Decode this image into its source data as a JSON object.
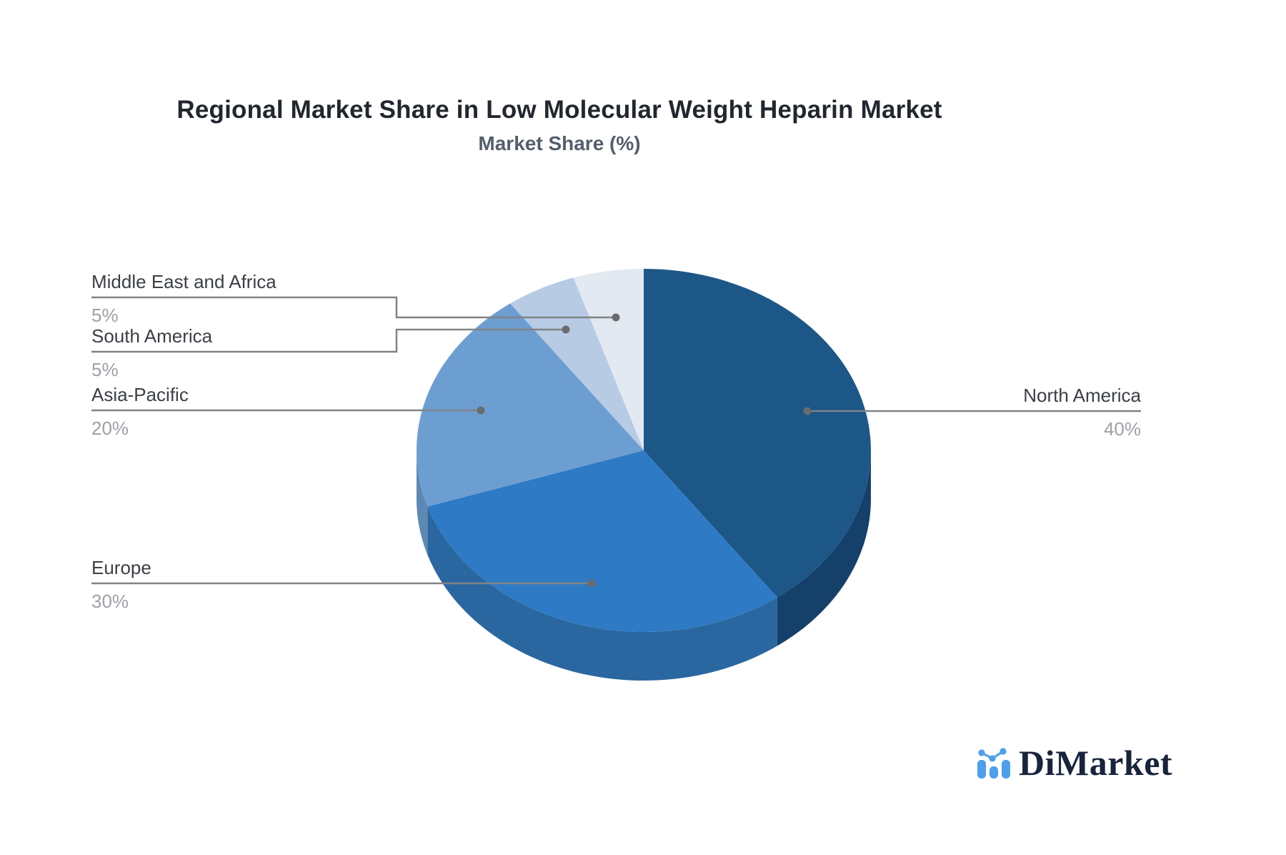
{
  "header": {
    "title": "Regional Market Share in Low Molecular Weight Heparin Market",
    "subtitle": "Market Share (%)"
  },
  "logo": {
    "text": "DiMarket",
    "icon_color": "#4d9fec",
    "text_color": "#18243c"
  },
  "chart_data": {
    "type": "pie",
    "style": "3d",
    "title": "Regional Market Share in Low Molecular Weight Heparin Market",
    "subtitle": "Market Share (%)",
    "unit": "%",
    "start_angle": 90,
    "direction": "clockwise",
    "legend_position": "leader-labels",
    "slices": [
      {
        "label": "North America",
        "value": 40,
        "display": "40%",
        "color": "#1d5788",
        "side_color": "#15406a"
      },
      {
        "label": "Europe",
        "value": 30,
        "display": "30%",
        "color": "#2e7ac4",
        "side_color": "#2a67a0"
      },
      {
        "label": "Asia-Pacific",
        "value": 20,
        "display": "20%",
        "color": "#6d9ed2",
        "side_color": "#5e88b4"
      },
      {
        "label": "South America",
        "value": 5,
        "display": "5%",
        "color": "#b7cce4",
        "side_color": "#9fb5cc"
      },
      {
        "label": "Middle East and Africa",
        "value": 5,
        "display": "5%",
        "color": "#e3e9f1",
        "side_color": "#c8d1dc"
      }
    ],
    "label_color": "#3b4046",
    "value_color": "#9da1a6",
    "line_color": "#7f8387",
    "dot_color": "#696b6d"
  }
}
